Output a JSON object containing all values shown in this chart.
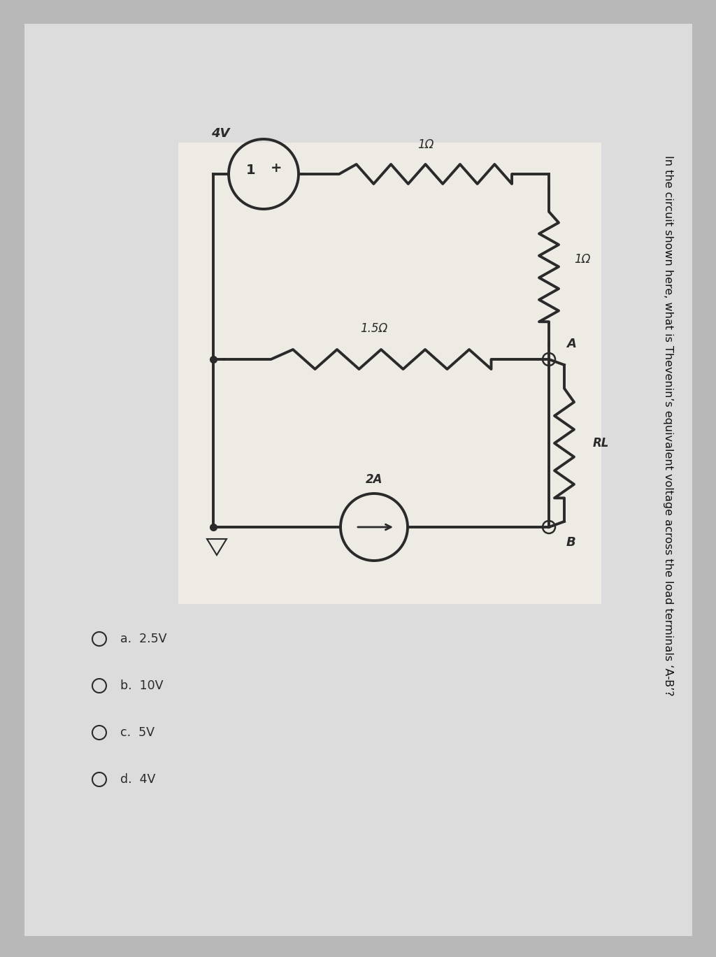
{
  "bg_outer": "#b8b8b8",
  "bg_page": "#dcdcdc",
  "bg_circuit": "#eeeae4",
  "line_color": "#2a2a2a",
  "line_width": 2.8,
  "title": "In the circuit shown here, what is Thevenin’s equivalent voltage across the load terminals ‘A-B’?",
  "title_fontsize": 11.5,
  "options": [
    "a.  2.5V",
    "b.  10V",
    "c.  5V",
    "d.  4V"
  ],
  "option_fontsize": 12.5,
  "battery_label": "4V",
  "r_top_label": "1Ω",
  "r_right_label": "1Ω",
  "r_mid_label": "1.5Ω",
  "cs_label": "2A",
  "node_A": "A",
  "node_B": "B",
  "rl_label": "RL",
  "figw": 10.24,
  "figh": 13.69,
  "dpi": 100
}
